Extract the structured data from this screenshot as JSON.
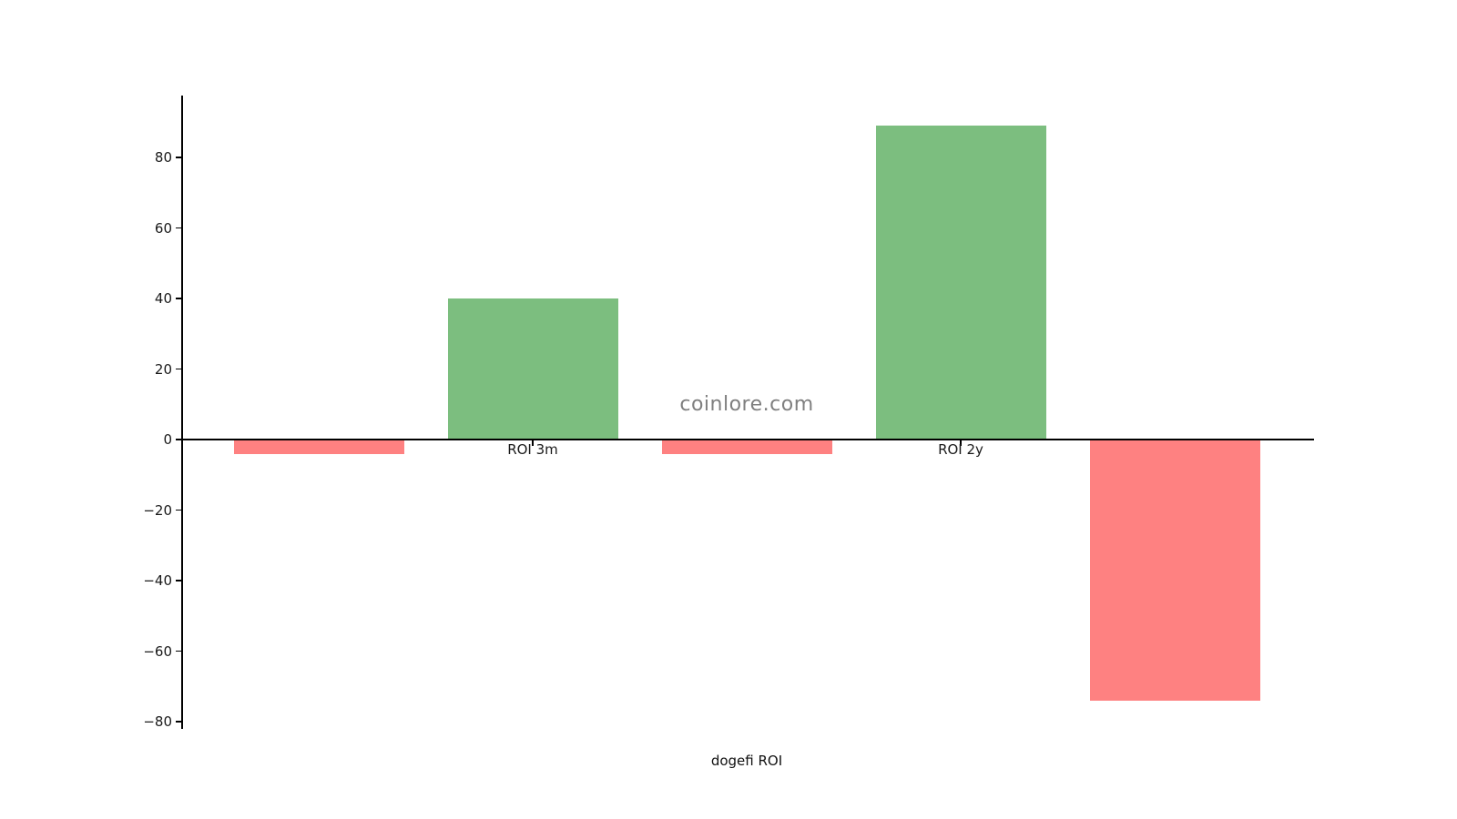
{
  "chart_data": {
    "type": "bar",
    "title": "",
    "xlabel": "dogefi ROI",
    "ylabel": "",
    "categories": [
      "",
      "ROI 3m",
      "",
      "ROI 2y",
      ""
    ],
    "values": [
      -4,
      40,
      -4,
      89,
      -74
    ],
    "x_tick_labels": [
      {
        "index": 1,
        "label": "ROI 3m"
      },
      {
        "index": 3,
        "label": "ROI 2y"
      }
    ],
    "y_ticks": [
      {
        "value": 80,
        "label": "80"
      },
      {
        "value": 60,
        "label": "60"
      },
      {
        "value": 40,
        "label": "40"
      },
      {
        "value": 20,
        "label": "20"
      },
      {
        "value": 0,
        "label": "0"
      },
      {
        "value": -20,
        "label": "−20"
      },
      {
        "value": -40,
        "label": "−40"
      },
      {
        "value": -60,
        "label": "−60"
      },
      {
        "value": -80,
        "label": "−80"
      }
    ],
    "ylim": [
      -82,
      97.5
    ],
    "grid": false,
    "watermark": "coinlore.com",
    "colors": {
      "positive": "#7cbe7f",
      "negative": "#fe8181",
      "axis": "#000000",
      "watermark_text": "#7f7f7f"
    }
  }
}
